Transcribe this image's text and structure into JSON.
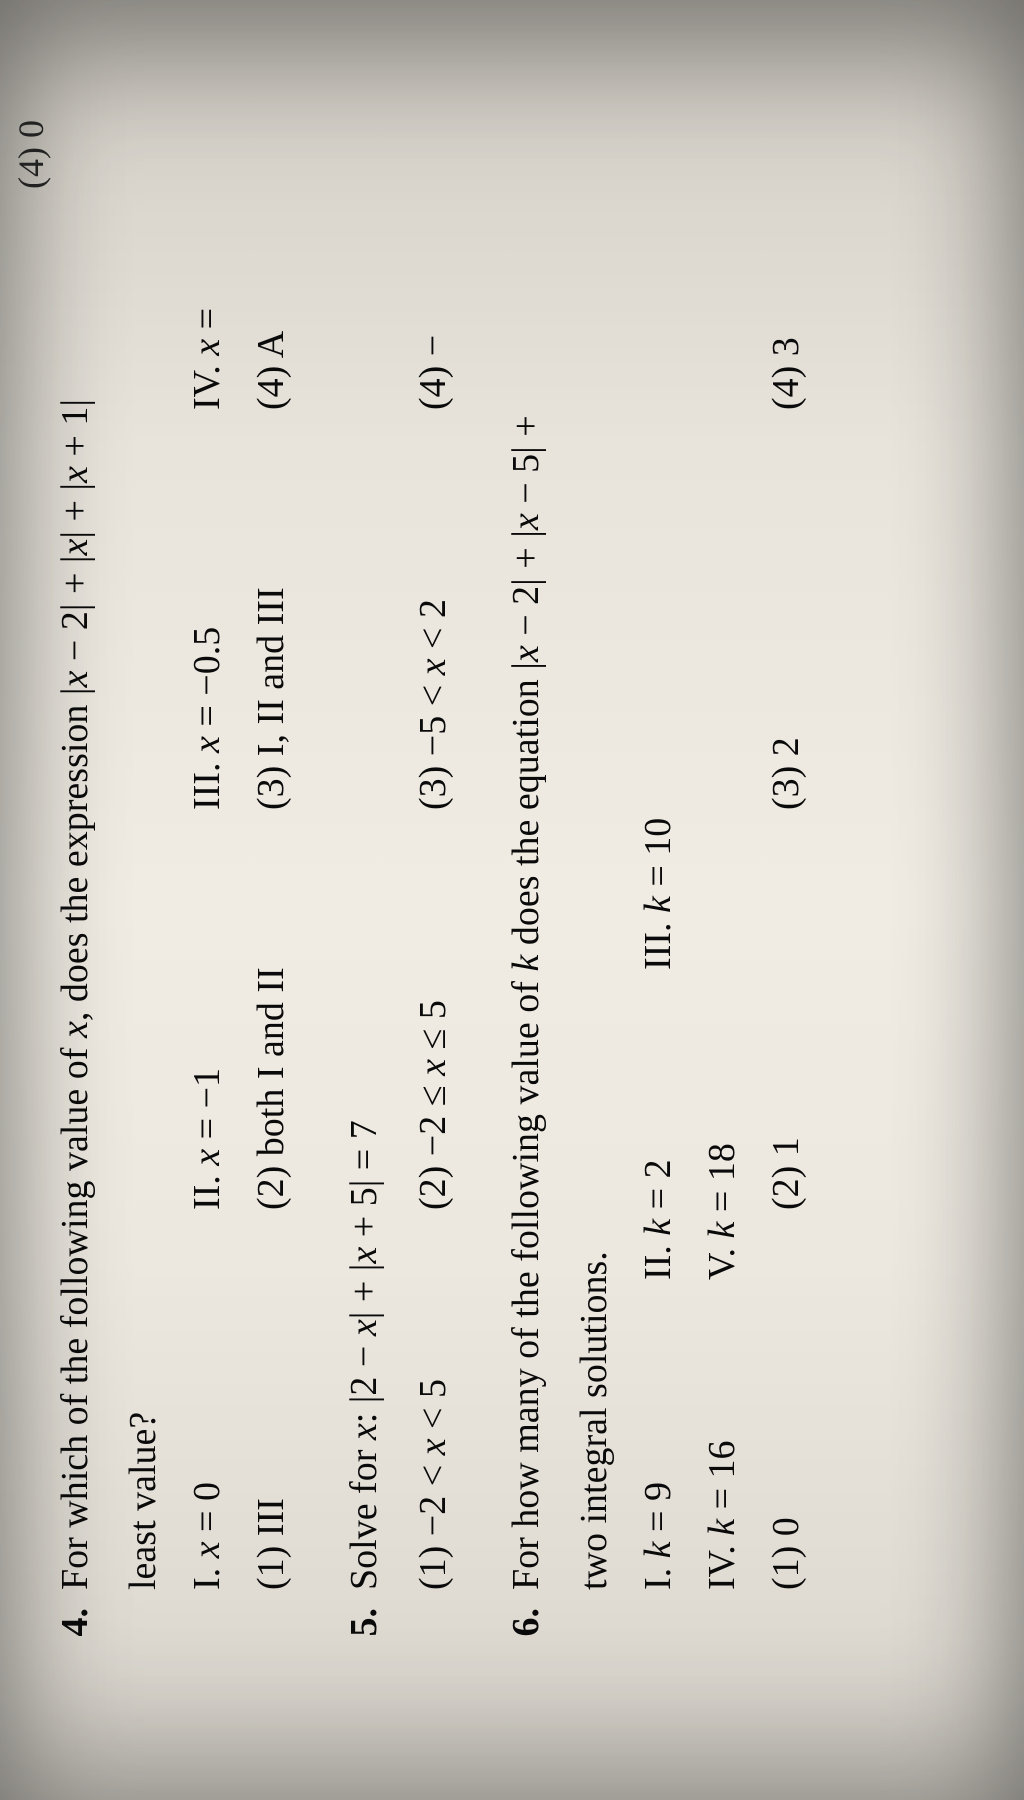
{
  "top_fragment": "(4) 0",
  "q4": {
    "number": "4.",
    "text_line1": "For which of the following value of x, does the expression |x − 2| + |x| + |x + 1|",
    "text_line2": "least value?",
    "roman": {
      "i": "I. x = 0",
      "ii": "II. x = −1",
      "iii": "III. x = −0.5",
      "iv": "IV. x ="
    },
    "options": {
      "o1": "(1) III",
      "o2": "(2) both I and II",
      "o3": "(3) I, II and III",
      "o4": "(4) A"
    }
  },
  "q5": {
    "number": "5.",
    "text": "Solve for x: |2 − x| + |x + 5| = 7",
    "options": {
      "o1": "(1) −2 < x < 5",
      "o2": "(2) −2 ≤ x ≤ 5",
      "o3": "(3) −5 < x < 2",
      "o4": "(4) −"
    }
  },
  "q6": {
    "number": "6.",
    "text_line1": "For how many of the following value of k does the equation |x − 2| + |x − 5| +",
    "text_line2": "two integral solutions.",
    "roman": {
      "i": "I. k = 9",
      "ii": "II. k = 2",
      "iii": "III. k = 10",
      "iv": "IV. k = 16",
      "v": "V. k = 18"
    },
    "options": {
      "o1": "(1) 0",
      "o2": "(2) 1",
      "o3": "(3) 2",
      "o4": "(4) 3"
    }
  }
}
